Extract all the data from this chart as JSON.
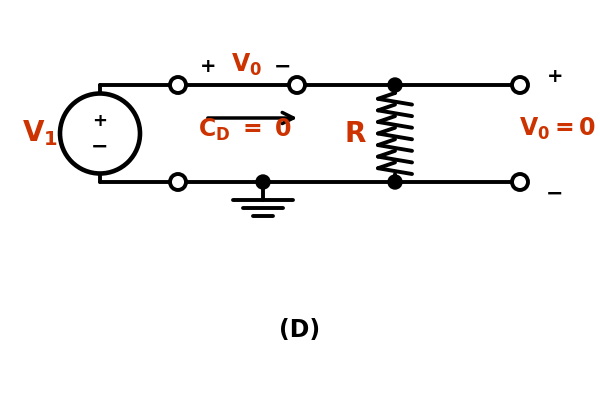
{
  "bg_color": "#ffffff",
  "line_color": "#000000",
  "orange": "#cc3300",
  "figsize": [
    6.0,
    4.0
  ],
  "dpi": 100,
  "lw": 2.8,
  "lw_thick": 3.2,
  "title": "(D)"
}
